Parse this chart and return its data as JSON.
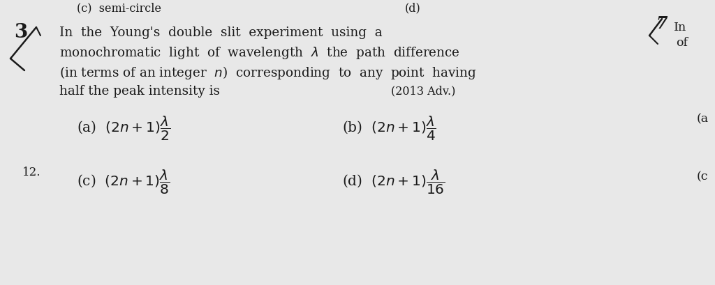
{
  "bg_color": "#e8e8e8",
  "text_color": "#1a1a1a",
  "figsize": [
    10.24,
    4.09
  ],
  "dpi": 100,
  "top_left_text": "(c)  semi-circle",
  "top_right_text": "(d)",
  "q_number": "3",
  "line1": "In  the  Young's  double  slit  experiment  using  a",
  "line2": "monochromatic  light  of  wavelength  $\\lambda$  the  path  difference",
  "line3": "(in terms of an integer  $n$)  corresponding  to  any  point  having",
  "line4": "half the peak intensity is",
  "year_tag": "(2013 Adv.)",
  "opt_a": "(a)  $(2n+1)\\dfrac{\\lambda}{2}$",
  "opt_b": "(b)  $(2n+1)\\dfrac{\\lambda}{4}$",
  "opt_c": "(c)  $(2n+1)\\dfrac{\\lambda}{8}$",
  "opt_d": "(d)  $(2n+1)\\dfrac{\\lambda}{16}$",
  "right_num": "7",
  "right_In": "In",
  "right_of": "of",
  "right_a": "(a",
  "right_c": "(c",
  "left_num": "12"
}
